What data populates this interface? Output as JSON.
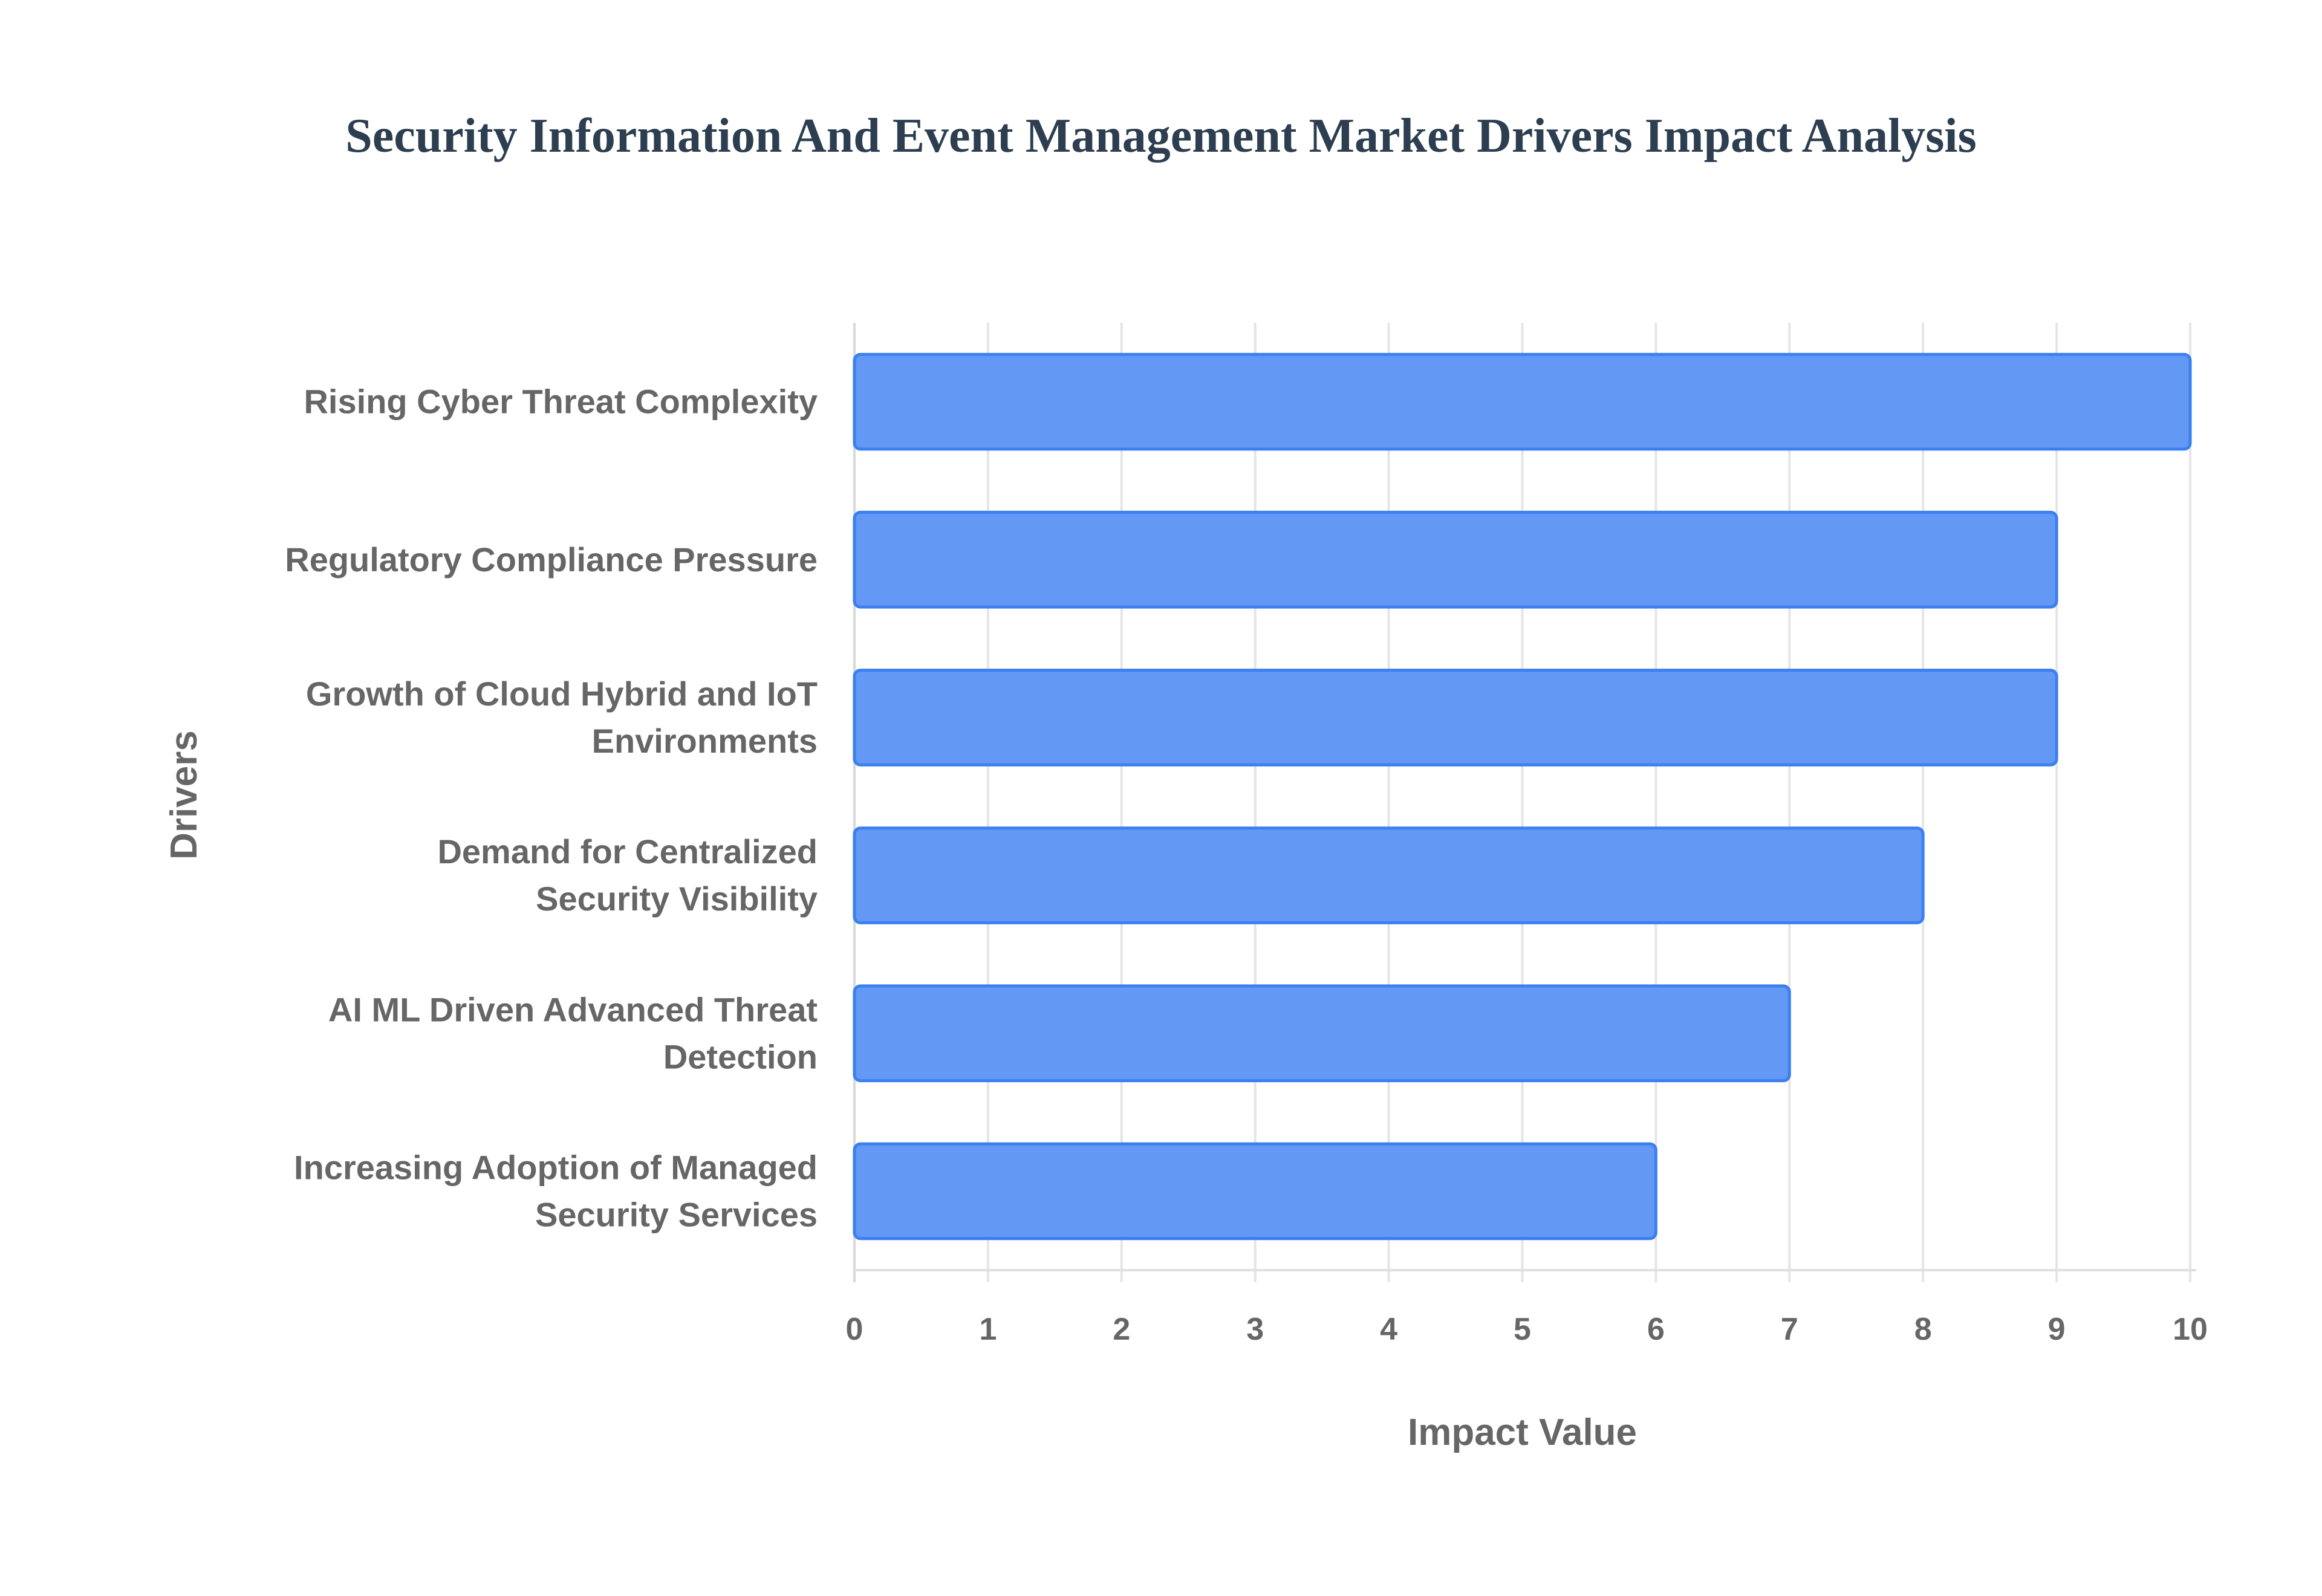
{
  "chart_data": {
    "type": "bar",
    "orientation": "horizontal",
    "title": "Security Information And Event Management Market Drivers Impact Analysis",
    "xlabel": "Impact Value",
    "ylabel": "Drivers",
    "categories": [
      [
        "Rising Cyber Threat Complexity"
      ],
      [
        "Regulatory Compliance Pressure"
      ],
      [
        "Growth of Cloud Hybrid and IoT",
        "Environments"
      ],
      [
        "Demand for Centralized",
        "Security Visibility"
      ],
      [
        "AI ML Driven Advanced Threat",
        "Detection"
      ],
      [
        "Increasing Adoption of Managed",
        "Security Services"
      ]
    ],
    "values": [
      10,
      9,
      9,
      8,
      7,
      6
    ],
    "xlim": [
      0,
      10
    ],
    "xticks": [
      "0",
      "1",
      "2",
      "3",
      "4",
      "5",
      "6",
      "7",
      "8",
      "9",
      "10"
    ],
    "grid": true,
    "legend": "none",
    "colors": {
      "bar_fill": "#6399f5",
      "bar_border": "#3b7ff0",
      "title": "#2c3e50",
      "text": "#666666",
      "grid": "#e5e5e5"
    }
  }
}
